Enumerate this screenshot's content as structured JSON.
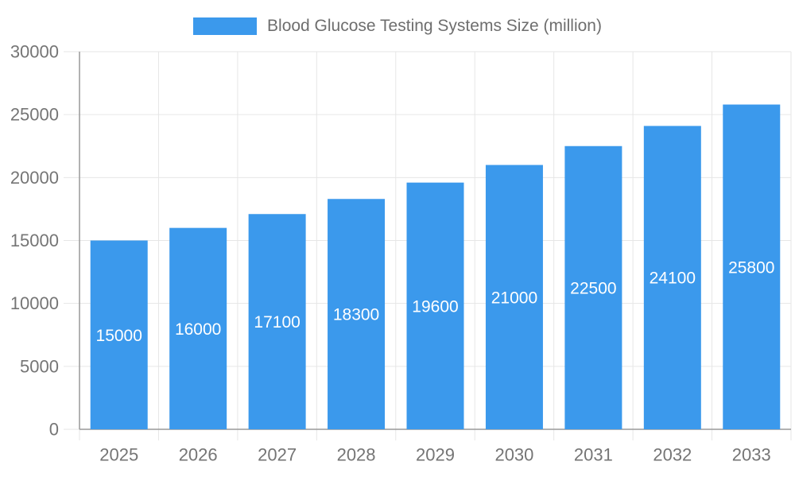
{
  "legend": {
    "label": "Blood Glucose Testing Systems Size (million)"
  },
  "chart_data": {
    "type": "bar",
    "title": "Blood Glucose Testing Systems Size (million)",
    "categories": [
      "2025",
      "2026",
      "2027",
      "2028",
      "2029",
      "2030",
      "2031",
      "2032",
      "2033"
    ],
    "values": [
      15000,
      16000,
      17100,
      18300,
      19600,
      21000,
      22500,
      24100,
      25800
    ],
    "xlabel": "",
    "ylabel": "",
    "ylim": [
      0,
      30000
    ],
    "yticks": [
      0,
      5000,
      10000,
      15000,
      20000,
      25000,
      30000
    ],
    "grid": true,
    "legend_position": "top-center",
    "bar_label_position": "inside-center",
    "colors": {
      "bar": "#3b99ec",
      "bar_label": "#ffffff",
      "axis_label": "#757575",
      "legend_text": "#6e6e6e",
      "grid_line": "#e6e6e6",
      "axis_line": "#999999",
      "background": "#ffffff"
    }
  }
}
